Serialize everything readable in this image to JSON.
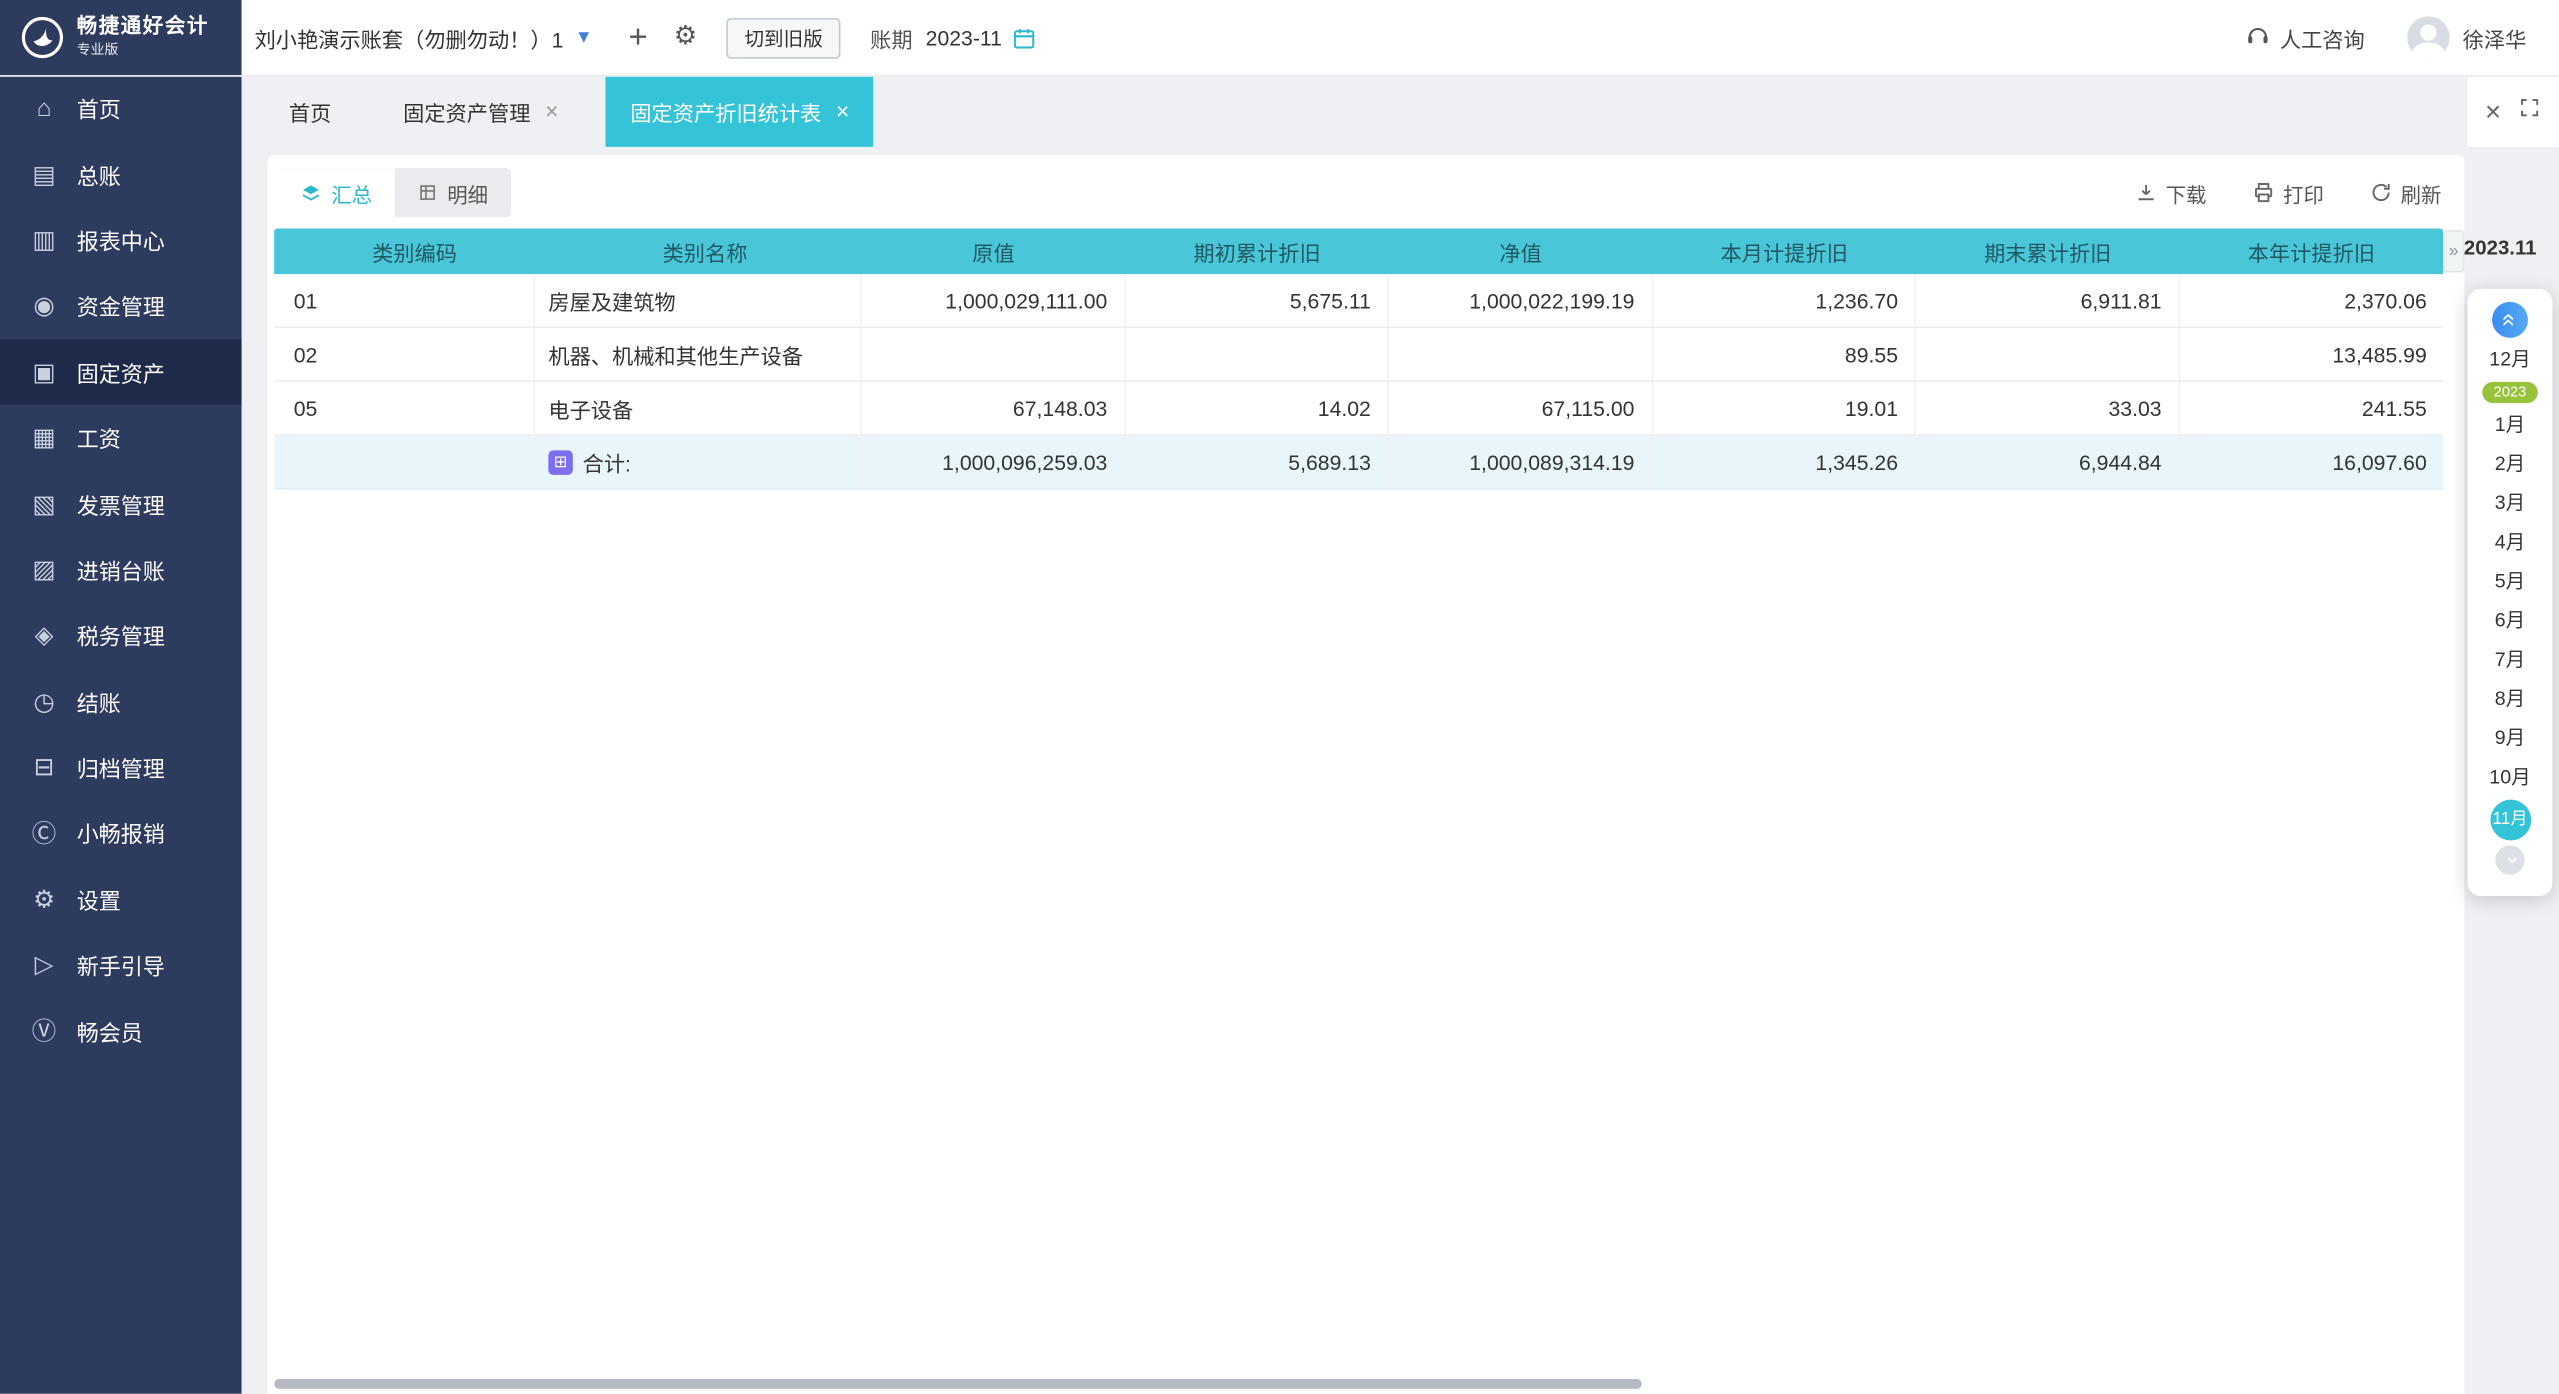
{
  "topbar": {
    "logo_title": "畅捷通好会计",
    "logo_subtitle": "专业版",
    "account_selector": "刘小艳演示账套（勿删勿动！）1",
    "add_label": "+",
    "gear_label": "⚙",
    "switch_old_version": "切到旧版",
    "period_label": "账期",
    "period_value": "2023-11",
    "support_label": "人工咨询",
    "username": "徐泽华"
  },
  "sidebar": {
    "items": [
      {
        "id": "home",
        "label": "首页",
        "icon": "home-icon",
        "glyph": "⌂",
        "active": false
      },
      {
        "id": "general-ledger",
        "label": "总账",
        "icon": "ledger-icon",
        "glyph": "▤",
        "active": false
      },
      {
        "id": "report-center",
        "label": "报表中心",
        "icon": "chart-icon",
        "glyph": "▥",
        "active": false
      },
      {
        "id": "funds",
        "label": "资金管理",
        "icon": "funds-icon",
        "glyph": "◉",
        "active": false
      },
      {
        "id": "fixed-assets",
        "label": "固定资产",
        "icon": "assets-icon",
        "glyph": "▣",
        "active": true
      },
      {
        "id": "payroll",
        "label": "工资",
        "icon": "payroll-icon",
        "glyph": "▦",
        "active": false
      },
      {
        "id": "invoice",
        "label": "发票管理",
        "icon": "invoice-icon",
        "glyph": "▧",
        "active": false
      },
      {
        "id": "purchase-sale",
        "label": "进销台账",
        "icon": "inventory-icon",
        "glyph": "▨",
        "active": false
      },
      {
        "id": "tax",
        "label": "税务管理",
        "icon": "tax-icon",
        "glyph": "◈",
        "active": false
      },
      {
        "id": "closing",
        "label": "结账",
        "icon": "closing-icon",
        "glyph": "◷",
        "active": false
      },
      {
        "id": "archive",
        "label": "归档管理",
        "icon": "archive-icon",
        "glyph": "⊟",
        "active": false
      },
      {
        "id": "expense",
        "label": "小畅报销",
        "icon": "expense-icon",
        "glyph": "Ⓒ",
        "active": false
      },
      {
        "id": "settings",
        "label": "设置",
        "icon": "gear-icon",
        "glyph": "⚙",
        "active": false
      },
      {
        "id": "guide",
        "label": "新手引导",
        "icon": "guide-icon",
        "glyph": "▷",
        "active": false
      },
      {
        "id": "member",
        "label": "畅会员",
        "icon": "member-icon",
        "glyph": "Ⓥ",
        "active": false
      }
    ]
  },
  "tabs": {
    "items": [
      {
        "id": "home",
        "label": "首页",
        "closable": false,
        "active": false
      },
      {
        "id": "fixed-assets-management",
        "label": "固定资产管理",
        "closable": true,
        "active": false
      },
      {
        "id": "fixed-assets-depreciation-report",
        "label": "固定资产折旧统计表",
        "closable": true,
        "active": true
      }
    ],
    "close_all_label": "×"
  },
  "toolbar": {
    "subtabs": [
      {
        "id": "summary",
        "label": "汇总",
        "active": true
      },
      {
        "id": "detail",
        "label": "明细",
        "active": false
      }
    ],
    "actions": [
      {
        "id": "download",
        "label": "下载"
      },
      {
        "id": "print",
        "label": "打印"
      },
      {
        "id": "refresh",
        "label": "刷新"
      }
    ]
  },
  "table": {
    "columns": [
      "类别编码",
      "类别名称",
      "原值",
      "期初累计折旧",
      "净值",
      "本月计提折旧",
      "期末累计折旧",
      "本年计提折旧"
    ],
    "rows": [
      [
        "01",
        "房屋及建筑物",
        "1,000,029,111.00",
        "5,675.11",
        "1,000,022,199.19",
        "1,236.70",
        "6,911.81",
        "2,370.06"
      ],
      [
        "02",
        "机器、机械和其他生产设备",
        "",
        "",
        "",
        "89.55",
        "",
        "13,485.99"
      ],
      [
        "05",
        "电子设备",
        "67,148.03",
        "14.02",
        "67,115.00",
        "19.01",
        "33.03",
        "241.55"
      ]
    ],
    "total_label": "合计:",
    "totals": [
      "1,000,096,259.03",
      "5,689.13",
      "1,000,089,314.19",
      "1,345.26",
      "6,944.84",
      "16,097.60"
    ]
  },
  "period_panel": {
    "current": "2023.11",
    "months_top": [
      "12月"
    ],
    "year_badge": "2023",
    "months": [
      "1月",
      "2月",
      "3月",
      "4月",
      "5月",
      "6月",
      "7月",
      "8月",
      "9月",
      "10月",
      "11月"
    ],
    "active_month": "11月"
  },
  "colors": {
    "accent_cyan": "#35c4d7",
    "table_header_bg": "#49c7d8",
    "sidebar_bg": "#2d3b5e",
    "sidebar_active_bg": "#1e2a49",
    "total_row_bg": "#e8f6fb",
    "year_badge_green": "#96c33b",
    "calc_icon_purple": "#7d6ef0",
    "scroll_up_blue": "#3b8cf0"
  }
}
